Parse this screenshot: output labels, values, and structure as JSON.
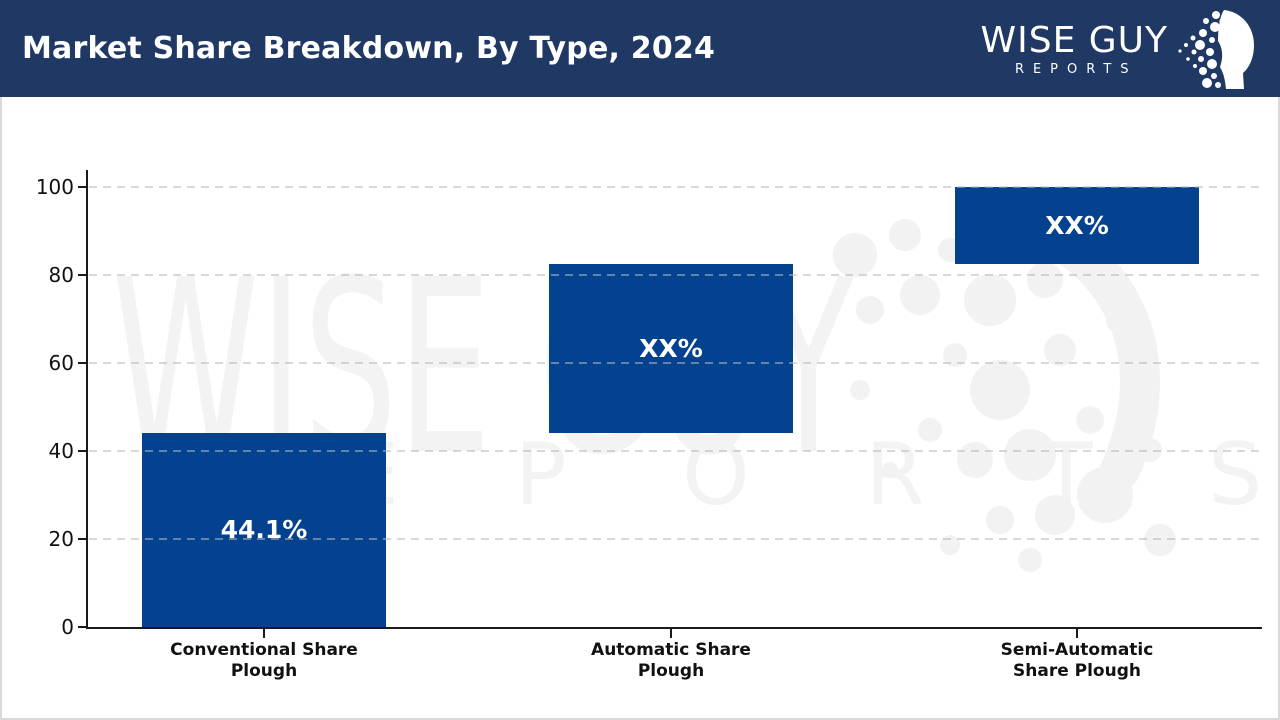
{
  "header": {
    "title": "Market Share Breakdown, By Type, 2024"
  },
  "logo": {
    "wordmark": "WISE GUY",
    "subtext": "REPORTS"
  },
  "watermark": {
    "line1": "WISE GUY",
    "line2": "R E P O R T S"
  },
  "colors": {
    "header_bg": "#203864",
    "title": "#ffffff",
    "bar": "#04418f",
    "bar_label": "#ffffff",
    "axis": "#1a1a1a",
    "watermark": "#f3f3f3"
  },
  "chart_data": {
    "type": "bar",
    "subtype": "waterfall-floating-bars",
    "title": "Market Share Breakdown, By Type, 2024",
    "categories": [
      "Conventional Share\nPlough",
      "Automatic Share\nPlough",
      "Semi-Automatic\nShare Plough"
    ],
    "segments": [
      {
        "category": "Conventional Share Plough",
        "start": 0,
        "end": 44.1,
        "label": "44.1%"
      },
      {
        "category": "Automatic Share Plough",
        "start": 44.1,
        "end": 82.5,
        "label": "XX%"
      },
      {
        "category": "Semi-Automatic Share Plough",
        "start": 82.5,
        "end": 100,
        "label": "XX%"
      }
    ],
    "yticks": [
      0,
      20,
      40,
      60,
      80,
      100
    ],
    "ylim": [
      0,
      104
    ],
    "xlabel": "",
    "ylabel": "",
    "grid": "dashed-horizontal",
    "legend": "none"
  }
}
